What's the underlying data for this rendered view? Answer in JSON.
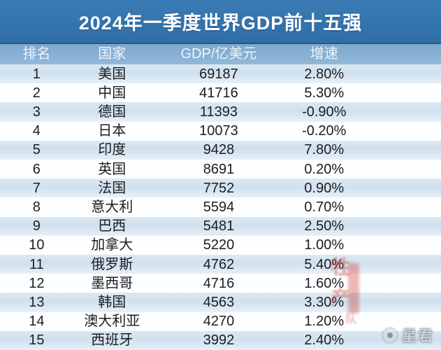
{
  "title": "2024年一季度世界GDP前十五强",
  "colors": {
    "banner": "#3474ac",
    "banner_border": "#24598c",
    "header_band": "#88b0d4",
    "header_text": "#eef4fa",
    "stripe": "#cfe0ee",
    "white_row": "#fdfeff",
    "text": "#1d1d1f",
    "watermark_red": "#cc2218"
  },
  "watermarks": {
    "red_stamp_chars": [
      "牲",
      "产"
    ],
    "red_stamp_foot": "队",
    "bottom_right_icon": "camera-icon",
    "bottom_right_text": "星君"
  },
  "chart_data": {
    "type": "table",
    "title": "2024年一季度世界GDP前十五强",
    "columns": [
      "排名",
      "国家",
      "GDP/亿美元",
      "增速"
    ],
    "rows": [
      [
        "1",
        "美国",
        "69187",
        "2.80%"
      ],
      [
        "2",
        "中国",
        "41716",
        "5.30%"
      ],
      [
        "3",
        "德国",
        "11393",
        "-0.90%"
      ],
      [
        "4",
        "日本",
        "10073",
        "-0.20%"
      ],
      [
        "5",
        "印度",
        "9428",
        "7.80%"
      ],
      [
        "6",
        "英国",
        "8691",
        "0.20%"
      ],
      [
        "7",
        "法国",
        "7752",
        "0.90%"
      ],
      [
        "8",
        "意大利",
        "5594",
        "0.70%"
      ],
      [
        "9",
        "巴西",
        "5481",
        "2.50%"
      ],
      [
        "10",
        "加拿大",
        "5220",
        "1.00%"
      ],
      [
        "11",
        "俄罗斯",
        "4762",
        "5.40%"
      ],
      [
        "12",
        "墨西哥",
        "4716",
        "1.60%"
      ],
      [
        "13",
        "韩国",
        "4563",
        "3.30%"
      ],
      [
        "14",
        "澳大利亚",
        "4270",
        "1.20%"
      ],
      [
        "15",
        "西班牙",
        "3992",
        "2.40%"
      ]
    ]
  }
}
